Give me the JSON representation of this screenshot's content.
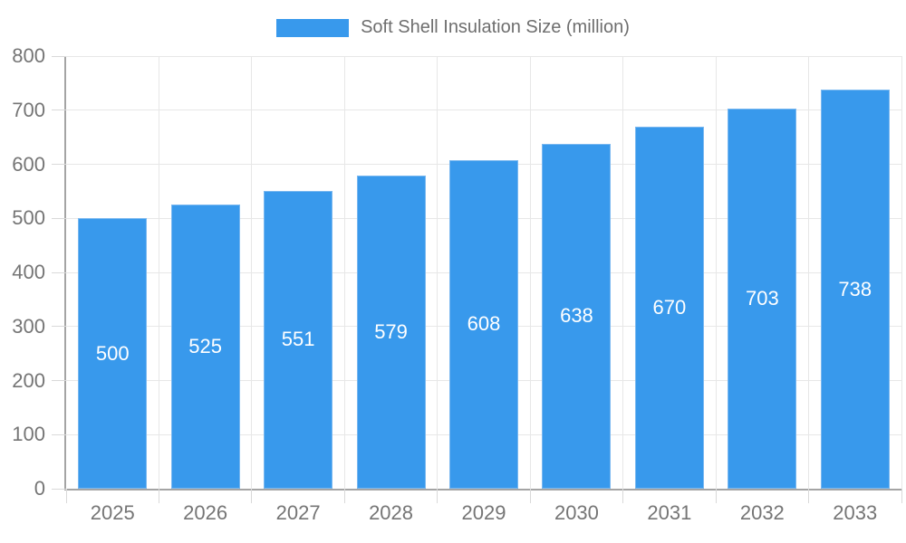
{
  "legend": {
    "label": "Soft Shell Insulation Size (million)"
  },
  "chart_data": {
    "type": "bar",
    "title": "Soft Shell Insulation Size (million)",
    "legend_position": "top",
    "categories": [
      "2025",
      "2026",
      "2027",
      "2028",
      "2029",
      "2030",
      "2031",
      "2032",
      "2033"
    ],
    "values": [
      500,
      525,
      551,
      579,
      608,
      638,
      670,
      703,
      738
    ],
    "xlabel": "",
    "ylabel": "",
    "ylim": [
      0,
      800
    ],
    "ytick_step": 100,
    "grid": true,
    "bar_labels_inside": true,
    "colors": {
      "bar": "#3899ec",
      "bar_border": "#7ab8f0",
      "bar_label": "#ffffff",
      "axis_text": "#757575",
      "legend_text": "#6e6e6e",
      "gridline": "#e7e7e7",
      "tick": "#d9d9d9",
      "axis_line": "#a4a4a4",
      "background": "#ffffff"
    }
  }
}
